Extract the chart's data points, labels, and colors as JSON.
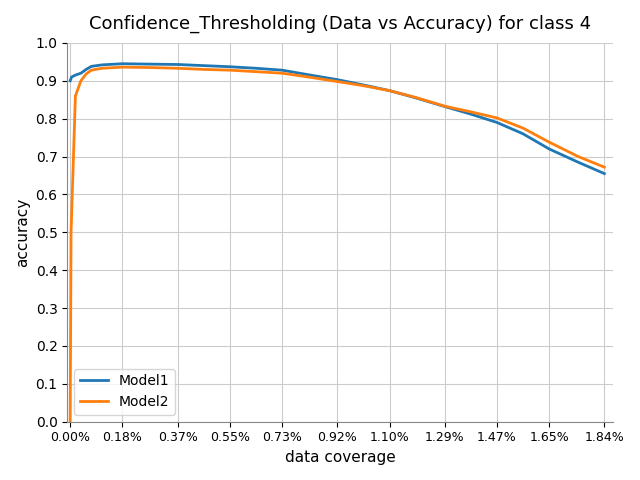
{
  "title": "Confidence_Thresholding (Data vs Accuracy) for class 4",
  "xlabel": "data coverage",
  "ylabel": "accuracy",
  "ylim": [
    0.0,
    1.0
  ],
  "yticks": [
    0.0,
    0.1,
    0.2,
    0.3,
    0.4,
    0.5,
    0.6,
    0.7,
    0.8,
    0.9,
    1.0
  ],
  "xtick_labels": [
    "0.00%",
    "0.18%",
    "0.37%",
    "0.55%",
    "0.73%",
    "0.92%",
    "1.10%",
    "1.29%",
    "1.47%",
    "1.65%",
    "1.84%"
  ],
  "xtick_positions": [
    0.0,
    0.18,
    0.37,
    0.55,
    0.73,
    0.92,
    1.1,
    1.29,
    1.47,
    1.65,
    1.84
  ],
  "model1_color": "#1f77b4",
  "model2_color": "#ff7f0e",
  "model1_label": "Model1",
  "model2_label": "Model2",
  "model1_x": [
    0.0,
    0.005,
    0.018,
    0.037,
    0.055,
    0.073,
    0.11,
    0.18,
    0.27,
    0.37,
    0.46,
    0.55,
    0.64,
    0.73,
    0.82,
    0.92,
    1.01,
    1.1,
    1.19,
    1.29,
    1.38,
    1.47,
    1.56,
    1.65,
    1.75,
    1.84
  ],
  "model1_y": [
    0.9,
    0.91,
    0.915,
    0.92,
    0.93,
    0.938,
    0.942,
    0.945,
    0.944,
    0.943,
    0.94,
    0.937,
    0.933,
    0.928,
    0.916,
    0.903,
    0.889,
    0.874,
    0.855,
    0.832,
    0.812,
    0.79,
    0.76,
    0.72,
    0.685,
    0.655
  ],
  "model2_x": [
    0.0,
    0.003,
    0.018,
    0.037,
    0.055,
    0.073,
    0.11,
    0.18,
    0.27,
    0.37,
    0.46,
    0.55,
    0.64,
    0.73,
    0.82,
    0.92,
    1.01,
    1.1,
    1.19,
    1.29,
    1.38,
    1.47,
    1.56,
    1.65,
    1.75,
    1.84
  ],
  "model2_y": [
    0.0,
    0.5,
    0.86,
    0.9,
    0.918,
    0.928,
    0.933,
    0.936,
    0.935,
    0.933,
    0.93,
    0.928,
    0.924,
    0.92,
    0.91,
    0.898,
    0.887,
    0.874,
    0.856,
    0.833,
    0.818,
    0.802,
    0.775,
    0.738,
    0.7,
    0.672
  ],
  "linewidth": 2.0,
  "background_color": "#ffffff",
  "grid_color": "#cccccc"
}
